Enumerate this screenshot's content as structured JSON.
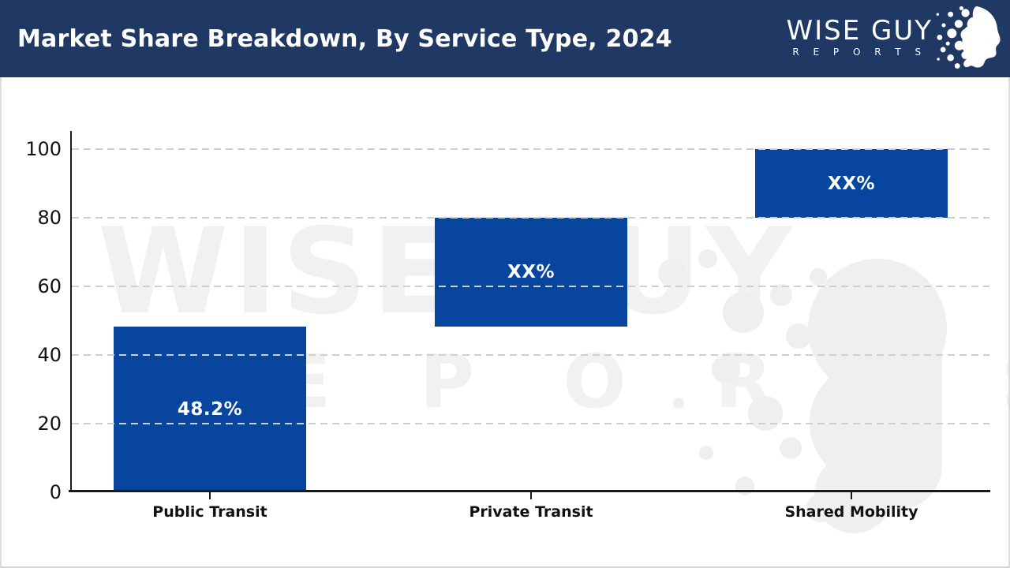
{
  "header": {
    "title": "Market Share Breakdown, By Service Type, 2024",
    "logo": {
      "line1": "WISE GUY",
      "line2": "R E P O R T S"
    }
  },
  "watermark": {
    "line1": "WISE GUY",
    "line2": "R E P O R T S"
  },
  "colors": {
    "header_bg": "#1F3864",
    "bar": "#07459E",
    "grid": "#CFCFCF",
    "axis": "#1A1A1A",
    "watermark": "#F1F1F1",
    "bar_label": "#FFFFFF"
  },
  "chart_data": {
    "type": "bar",
    "subtype": "floating-waterfall",
    "title": "Market Share Breakdown, By Service Type, 2024",
    "categories": [
      "Public Transit",
      "Private Transit",
      "Shared Mobility"
    ],
    "segments": [
      {
        "category": "Public Transit",
        "start": 0,
        "end": 48.2,
        "label": "48.2%"
      },
      {
        "category": "Private Transit",
        "start": 48.2,
        "end": 80,
        "label": "XX%"
      },
      {
        "category": "Shared Mobility",
        "start": 80,
        "end": 100,
        "label": "XX%"
      }
    ],
    "segment_sizes_pct": [
      48.2,
      31.8,
      20
    ],
    "ylim": [
      0,
      100
    ],
    "yticks": [
      0,
      20,
      40,
      60,
      80,
      100
    ],
    "grid": "dashed-horizontal",
    "legend": "none",
    "xlabel": "",
    "ylabel": ""
  }
}
